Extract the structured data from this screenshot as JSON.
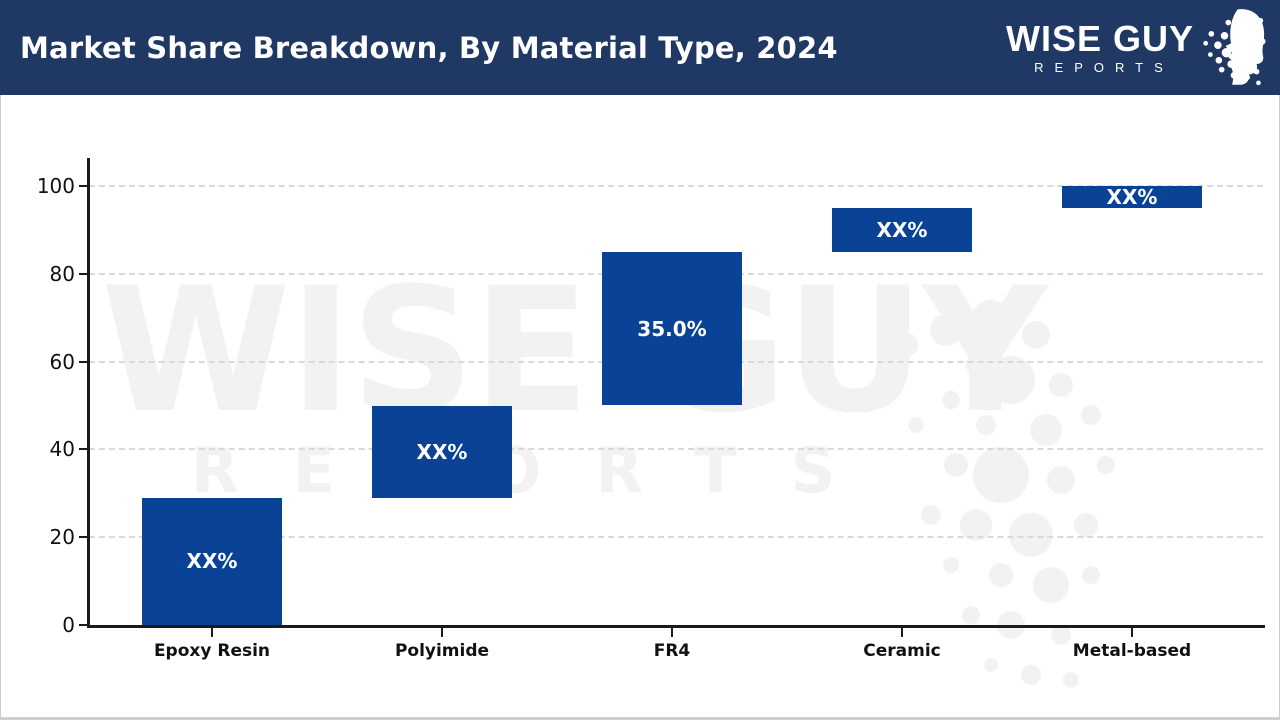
{
  "header": {
    "title": "Market Share Breakdown, By Material Type, 2024",
    "logo": {
      "line1": "WISE GUY",
      "line2": "REPORTS"
    }
  },
  "watermark": {
    "line1": "WISE GUY",
    "line2": "REPORTS"
  },
  "colors": {
    "header_bg": "#203864",
    "bar": "#0a4296",
    "grid": "#d9d9d9",
    "axis": "#1a1a1a",
    "bar_label": "#ffffff",
    "watermark": "#f2f2f2"
  },
  "chart_data": {
    "type": "bar",
    "variant": "waterfall",
    "title": "Market Share Breakdown, By Material Type, 2024",
    "categories": [
      "Epoxy Resin",
      "Polyimide",
      "FR4",
      "Ceramic",
      "Metal-based"
    ],
    "series": [
      {
        "name": "Market Share",
        "segments": [
          {
            "category": "Epoxy Resin",
            "start": 0,
            "end": 29,
            "value": 29,
            "label": "XX%"
          },
          {
            "category": "Polyimide",
            "start": 29,
            "end": 50,
            "value": 21,
            "label": "XX%"
          },
          {
            "category": "FR4",
            "start": 50,
            "end": 85,
            "value": 35,
            "label": "35.0%"
          },
          {
            "category": "Ceramic",
            "start": 85,
            "end": 95,
            "value": 10,
            "label": "XX%"
          },
          {
            "category": "Metal-based",
            "start": 95,
            "end": 100,
            "value": 5,
            "label": "XX%"
          }
        ]
      }
    ],
    "xlabel": "",
    "ylabel": "",
    "yticks": [
      0,
      20,
      40,
      60,
      80,
      100
    ],
    "ylim": [
      0,
      106
    ],
    "grid": "horizontal-dashed",
    "legend": "none"
  }
}
